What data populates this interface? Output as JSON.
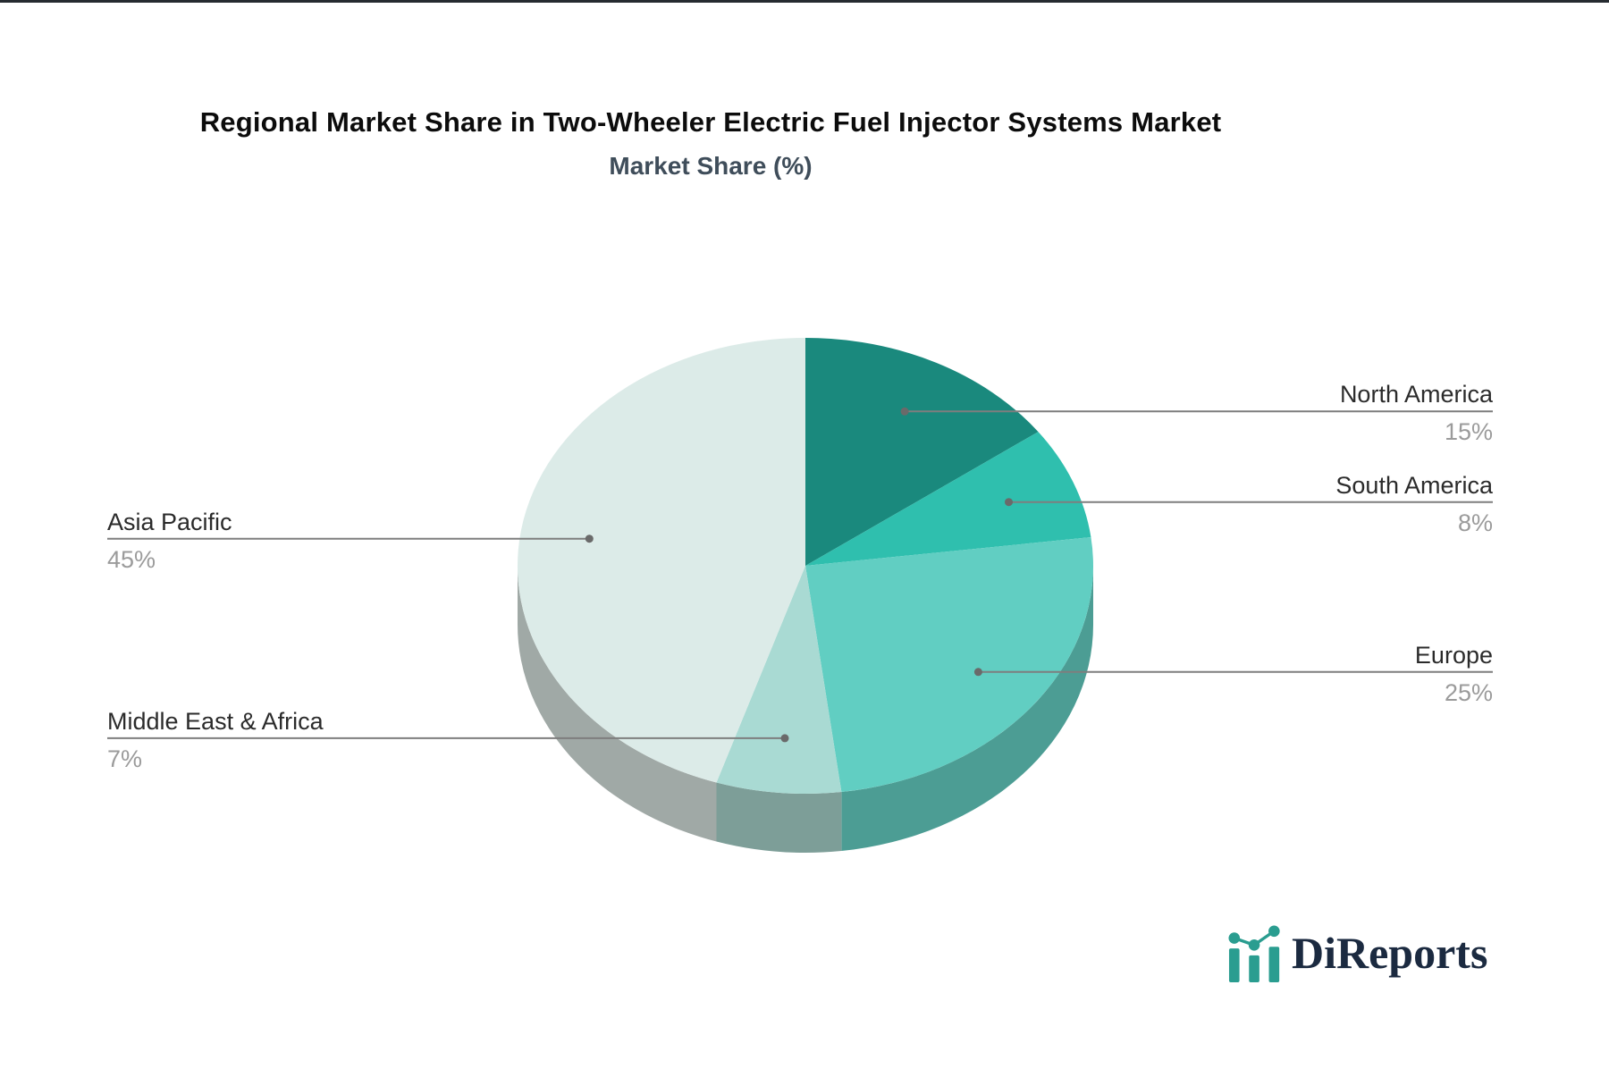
{
  "page": {
    "title": "Regional Market Share in Two-Wheeler Electric Fuel Injector Systems Market",
    "subtitle": "Market Share (%)"
  },
  "watermark": {
    "text": "DiReports",
    "icon": "bar-line-chart-icon",
    "icon_color": "#2a9d90",
    "text_color": "#1b2a40"
  },
  "chart_data": {
    "type": "pie",
    "style": "3d",
    "title": "Regional Market Share in Two-Wheeler Electric Fuel Injector Systems Market",
    "subtitle": "Market Share (%)",
    "unit": "%",
    "start_angle_deg": 0,
    "direction": "clockwise",
    "legend": "none",
    "categories": [
      "North America",
      "South America",
      "Europe",
      "Middle East & Africa",
      "Asia Pacific"
    ],
    "values": [
      15,
      8,
      25,
      7,
      45
    ],
    "slices": [
      {
        "label": "North America",
        "value": 15,
        "display": "15%",
        "color": "#1a897d",
        "depth_color": "#136b62",
        "label_side": "right"
      },
      {
        "label": "South America",
        "value": 8,
        "display": "8%",
        "color": "#2fbfae",
        "depth_color": "#28a093",
        "label_side": "right"
      },
      {
        "label": "Europe",
        "value": 25,
        "display": "25%",
        "color": "#61cec2",
        "depth_color": "#4c9d94",
        "label_side": "right"
      },
      {
        "label": "Middle East & Africa",
        "value": 7,
        "display": "7%",
        "color": "#a9dad3",
        "depth_color": "#7d9e98",
        "label_side": "left"
      },
      {
        "label": "Asia Pacific",
        "value": 45,
        "display": "45%",
        "color": "#dcebe8",
        "depth_color": "#a0a9a6",
        "label_side": "left"
      }
    ],
    "leader_line_color": "#7e7e7e",
    "dot_color": "#6a6a6a",
    "label_color": "#2b2b2b",
    "value_color": "#9b9b9b"
  }
}
